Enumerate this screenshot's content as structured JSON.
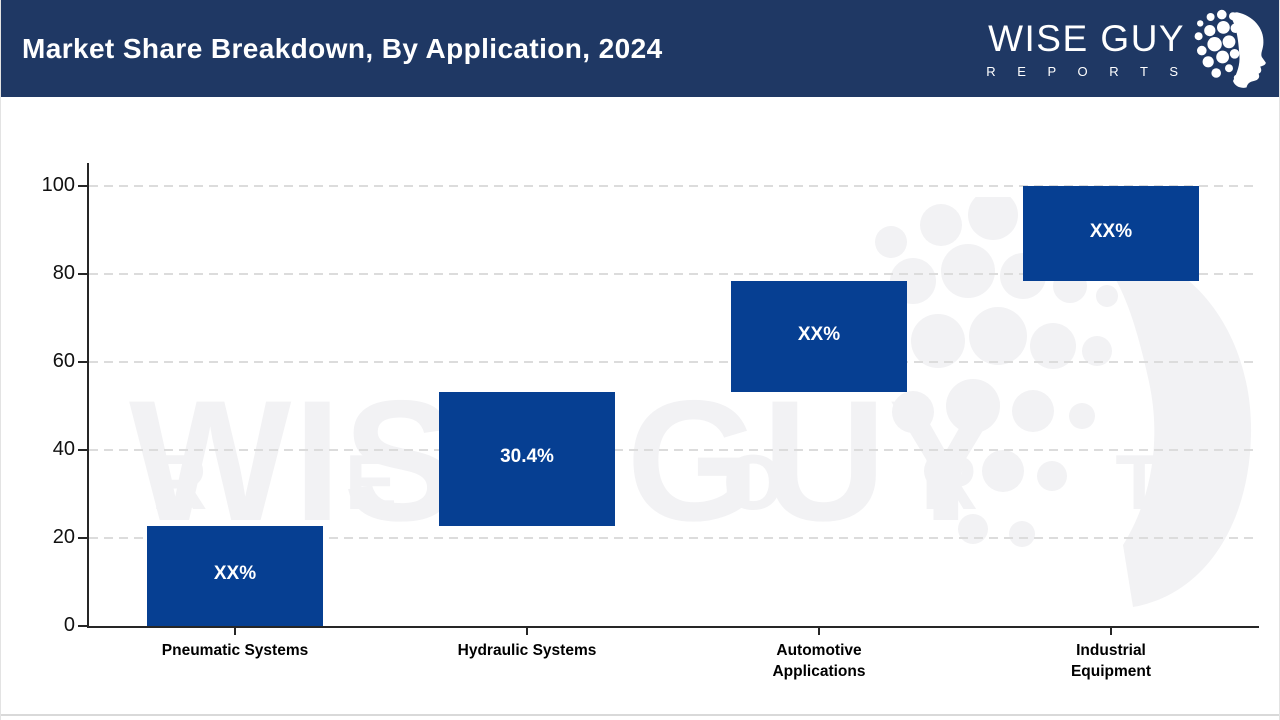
{
  "header": {
    "title": "Market Share Breakdown, By Application, 2024",
    "bg_color": "#1f3864",
    "logo": {
      "wordmark": "WISE GUY",
      "subtext": "R E P O R T S"
    }
  },
  "watermark": {
    "line1": "WISE GUY",
    "line2": "R E P O R T S"
  },
  "chart_data": {
    "type": "bar",
    "subtype": "floating-waterfall",
    "title": "Market Share Breakdown, By Application, 2024",
    "categories": [
      "Pneumatic Systems",
      "Hydraulic Systems",
      "Automotive\nApplications",
      "Industrial\nEquipment"
    ],
    "segments": [
      {
        "category": "Pneumatic Systems",
        "label": "XX%",
        "start": 0,
        "end": 22.7
      },
      {
        "category": "Hydraulic Systems",
        "label": "30.4%",
        "start": 22.7,
        "end": 53.1
      },
      {
        "category": "Automotive Applications",
        "label": "XX%",
        "start": 53.1,
        "end": 78.3
      },
      {
        "category": "Industrial Equipment",
        "label": "XX%",
        "start": 78.3,
        "end": 100
      }
    ],
    "bar_color": "#063f92",
    "label_color": "#ffffff",
    "ylim": [
      0,
      100
    ],
    "yticks": [
      0,
      20,
      40,
      60,
      80,
      100
    ],
    "grid": "horizontal-dashed",
    "grid_color": "#dcdcdc",
    "axis_color": "#262626",
    "legend": "none"
  }
}
